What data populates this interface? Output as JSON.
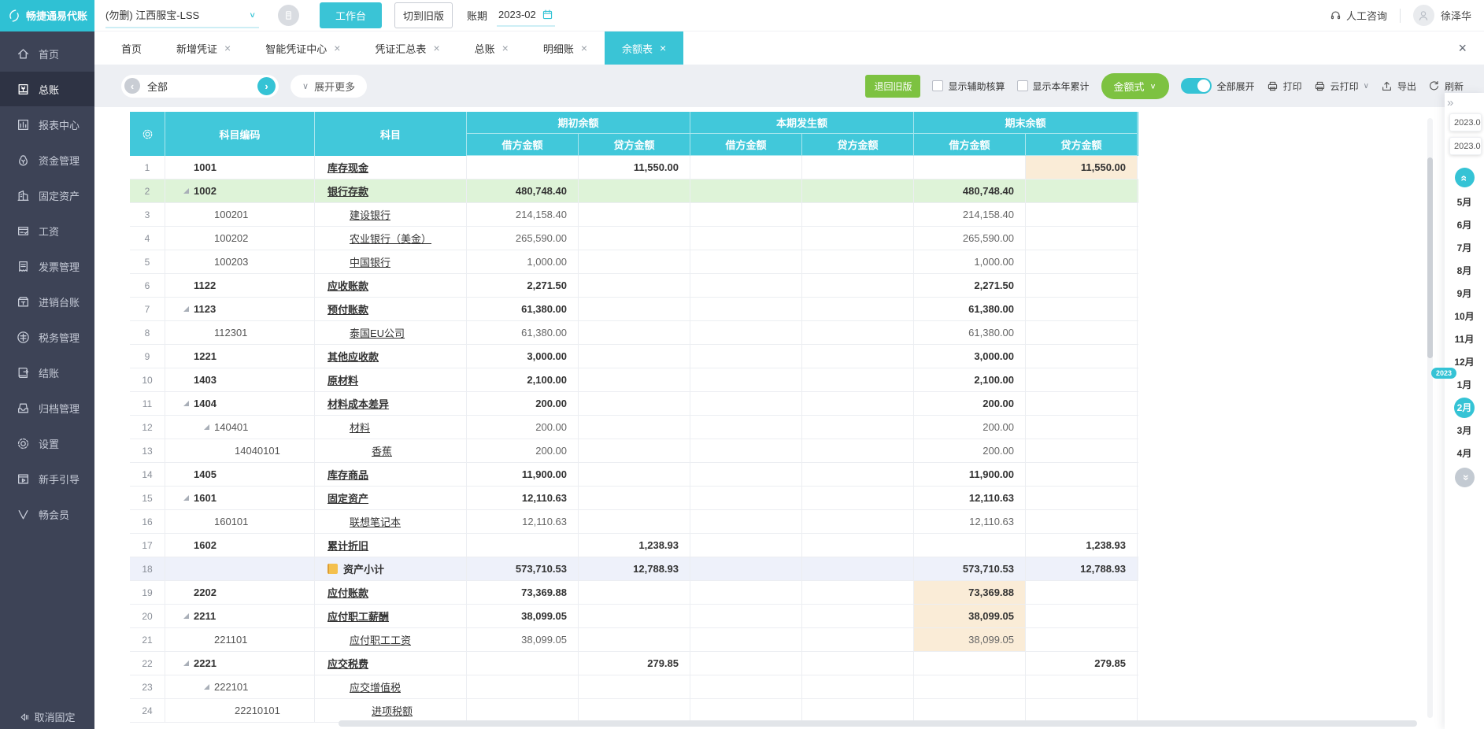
{
  "topbar": {
    "logo": "畅捷通易代账",
    "account": "(勿删) 江西服宝-LSS",
    "workbench": "工作台",
    "switch_old": "切到旧版",
    "period_label": "账期",
    "period_value": "2023-02",
    "support": "人工咨询",
    "username": "徐泽华"
  },
  "sidebar": {
    "items": [
      {
        "label": "首页",
        "icon": "home",
        "active": false
      },
      {
        "label": "总账",
        "icon": "ledger",
        "active": true
      },
      {
        "label": "报表中心",
        "icon": "report",
        "active": false
      },
      {
        "label": "资金管理",
        "icon": "money",
        "active": false
      },
      {
        "label": "固定资产",
        "icon": "asset",
        "active": false
      },
      {
        "label": "工资",
        "icon": "salary",
        "active": false
      },
      {
        "label": "发票管理",
        "icon": "invoice",
        "active": false
      },
      {
        "label": "进销台账",
        "icon": "purchase",
        "active": false
      },
      {
        "label": "税务管理",
        "icon": "tax",
        "active": false
      },
      {
        "label": "结账",
        "icon": "closing",
        "active": false
      },
      {
        "label": "归档管理",
        "icon": "archive",
        "active": false
      },
      {
        "label": "设置",
        "icon": "settings",
        "active": false
      },
      {
        "label": "新手引导",
        "icon": "guide",
        "active": false
      },
      {
        "label": "畅会员",
        "icon": "member",
        "active": false
      }
    ],
    "unpin": "取消固定"
  },
  "tabs": {
    "items": [
      {
        "label": "首页",
        "closable": false,
        "active": false
      },
      {
        "label": "新增凭证",
        "closable": true,
        "active": false
      },
      {
        "label": "智能凭证中心",
        "closable": true,
        "active": false
      },
      {
        "label": "凭证汇总表",
        "closable": true,
        "active": false
      },
      {
        "label": "总账",
        "closable": true,
        "active": false
      },
      {
        "label": "明细账",
        "closable": true,
        "active": false
      },
      {
        "label": "余额表",
        "closable": true,
        "active": true
      }
    ]
  },
  "toolbar": {
    "filter": "全部",
    "expand_more": "展开更多",
    "back_old": "退回旧版",
    "checkbox_aux": "显示辅助核算",
    "checkbox_ytd": "显示本年累计",
    "amount_style": "金额式",
    "expand_all": "全部展开",
    "print": "打印",
    "cloud_print": "云打印",
    "export": "导出",
    "refresh": "刷新"
  },
  "table": {
    "col_code": "科目编码",
    "col_subject": "科目",
    "grp_opening": "期初余额",
    "grp_current": "本期发生额",
    "grp_ending": "期末余额",
    "col_debit": "借方金额",
    "col_credit": "贷方金额",
    "rows": [
      {
        "seq": "1",
        "code": "1001",
        "tri": false,
        "level": 1,
        "subject": "库存现金",
        "bold": true,
        "bg": "",
        "subtotal": false,
        "hl": [
          5
        ],
        "amounts": [
          "",
          "11,550.00",
          "",
          "",
          "",
          "11,550.00"
        ]
      },
      {
        "seq": "2",
        "code": "1002",
        "tri": true,
        "level": 1,
        "subject": "银行存款",
        "bold": true,
        "bg": "green",
        "subtotal": false,
        "hl": [],
        "amounts": [
          "480,748.40",
          "",
          "",
          "",
          "480,748.40",
          ""
        ]
      },
      {
        "seq": "3",
        "code": "100201",
        "tri": false,
        "level": 2,
        "subject": "建设银行",
        "bold": false,
        "bg": "",
        "subtotal": false,
        "hl": [],
        "amounts": [
          "214,158.40",
          "",
          "",
          "",
          "214,158.40",
          ""
        ]
      },
      {
        "seq": "4",
        "code": "100202",
        "tri": false,
        "level": 2,
        "subject": "农业银行（美金）",
        "bold": false,
        "bg": "",
        "subtotal": false,
        "hl": [],
        "amounts": [
          "265,590.00",
          "",
          "",
          "",
          "265,590.00",
          ""
        ]
      },
      {
        "seq": "5",
        "code": "100203",
        "tri": false,
        "level": 2,
        "subject": "中国银行",
        "bold": false,
        "bg": "",
        "subtotal": false,
        "hl": [],
        "amounts": [
          "1,000.00",
          "",
          "",
          "",
          "1,000.00",
          ""
        ]
      },
      {
        "seq": "6",
        "code": "1122",
        "tri": false,
        "level": 1,
        "subject": "应收账款",
        "bold": true,
        "bg": "",
        "subtotal": false,
        "hl": [],
        "amounts": [
          "2,271.50",
          "",
          "",
          "",
          "2,271.50",
          ""
        ]
      },
      {
        "seq": "7",
        "code": "1123",
        "tri": true,
        "level": 1,
        "subject": "预付账款",
        "bold": true,
        "bg": "",
        "subtotal": false,
        "hl": [],
        "amounts": [
          "61,380.00",
          "",
          "",
          "",
          "61,380.00",
          ""
        ]
      },
      {
        "seq": "8",
        "code": "112301",
        "tri": false,
        "level": 2,
        "subject": "泰国EU公司",
        "bold": false,
        "bg": "",
        "subtotal": false,
        "hl": [],
        "amounts": [
          "61,380.00",
          "",
          "",
          "",
          "61,380.00",
          ""
        ]
      },
      {
        "seq": "9",
        "code": "1221",
        "tri": false,
        "level": 1,
        "subject": "其他应收款",
        "bold": true,
        "bg": "",
        "subtotal": false,
        "hl": [],
        "amounts": [
          "3,000.00",
          "",
          "",
          "",
          "3,000.00",
          ""
        ]
      },
      {
        "seq": "10",
        "code": "1403",
        "tri": false,
        "level": 1,
        "subject": "原材料",
        "bold": true,
        "bg": "",
        "subtotal": false,
        "hl": [],
        "amounts": [
          "2,100.00",
          "",
          "",
          "",
          "2,100.00",
          ""
        ]
      },
      {
        "seq": "11",
        "code": "1404",
        "tri": true,
        "level": 1,
        "subject": "材料成本差异",
        "bold": true,
        "bg": "",
        "subtotal": false,
        "hl": [],
        "amounts": [
          "200.00",
          "",
          "",
          "",
          "200.00",
          ""
        ]
      },
      {
        "seq": "12",
        "code": "140401",
        "tri": true,
        "level": 2,
        "subject": "材料",
        "bold": false,
        "bg": "",
        "subtotal": false,
        "hl": [],
        "amounts": [
          "200.00",
          "",
          "",
          "",
          "200.00",
          ""
        ]
      },
      {
        "seq": "13",
        "code": "14040101",
        "tri": false,
        "level": 3,
        "subject": "香蕉",
        "bold": false,
        "bg": "",
        "subtotal": false,
        "hl": [],
        "amounts": [
          "200.00",
          "",
          "",
          "",
          "200.00",
          ""
        ]
      },
      {
        "seq": "14",
        "code": "1405",
        "tri": false,
        "level": 1,
        "subject": "库存商品",
        "bold": true,
        "bg": "",
        "subtotal": false,
        "hl": [],
        "amounts": [
          "11,900.00",
          "",
          "",
          "",
          "11,900.00",
          ""
        ]
      },
      {
        "seq": "15",
        "code": "1601",
        "tri": true,
        "level": 1,
        "subject": "固定资产",
        "bold": true,
        "bg": "",
        "subtotal": false,
        "hl": [],
        "amounts": [
          "12,110.63",
          "",
          "",
          "",
          "12,110.63",
          ""
        ]
      },
      {
        "seq": "16",
        "code": "160101",
        "tri": false,
        "level": 2,
        "subject": "联想笔记本",
        "bold": false,
        "bg": "",
        "subtotal": false,
        "hl": [],
        "amounts": [
          "12,110.63",
          "",
          "",
          "",
          "12,110.63",
          ""
        ]
      },
      {
        "seq": "17",
        "code": "1602",
        "tri": false,
        "level": 1,
        "subject": "累计折旧",
        "bold": true,
        "bg": "",
        "subtotal": false,
        "hl": [],
        "amounts": [
          "",
          "1,238.93",
          "",
          "",
          "",
          "1,238.93"
        ]
      },
      {
        "seq": "18",
        "code": "",
        "tri": false,
        "level": 1,
        "subject": "资产小计",
        "bold": true,
        "bg": "lavender",
        "subtotal": true,
        "hl": [],
        "amounts": [
          "573,710.53",
          "12,788.93",
          "",
          "",
          "573,710.53",
          "12,788.93"
        ]
      },
      {
        "seq": "19",
        "code": "2202",
        "tri": false,
        "level": 1,
        "subject": "应付账款",
        "bold": true,
        "bg": "",
        "subtotal": false,
        "hl": [
          4
        ],
        "amounts": [
          "73,369.88",
          "",
          "",
          "",
          "73,369.88",
          ""
        ]
      },
      {
        "seq": "20",
        "code": "2211",
        "tri": true,
        "level": 1,
        "subject": "应付职工薪酬",
        "bold": true,
        "bg": "",
        "subtotal": false,
        "hl": [
          4
        ],
        "amounts": [
          "38,099.05",
          "",
          "",
          "",
          "38,099.05",
          ""
        ]
      },
      {
        "seq": "21",
        "code": "221101",
        "tri": false,
        "level": 2,
        "subject": "应付职工工资",
        "bold": false,
        "bg": "",
        "subtotal": false,
        "hl": [
          4
        ],
        "amounts": [
          "38,099.05",
          "",
          "",
          "",
          "38,099.05",
          ""
        ]
      },
      {
        "seq": "22",
        "code": "2221",
        "tri": true,
        "level": 1,
        "subject": "应交税费",
        "bold": true,
        "bg": "",
        "subtotal": false,
        "hl": [],
        "amounts": [
          "",
          "279.85",
          "",
          "",
          "",
          "279.85"
        ]
      },
      {
        "seq": "23",
        "code": "222101",
        "tri": true,
        "level": 2,
        "subject": "应交增值税",
        "bold": false,
        "bg": "",
        "subtotal": false,
        "hl": [],
        "amounts": [
          "",
          "",
          "",
          "",
          "",
          ""
        ]
      },
      {
        "seq": "24",
        "code": "22210101",
        "tri": false,
        "level": 3,
        "subject": "进项税额",
        "bold": false,
        "bg": "",
        "subtotal": false,
        "hl": [],
        "amounts": [
          "",
          "",
          "",
          "",
          "",
          ""
        ]
      }
    ]
  },
  "right_panel": {
    "expand_icon": "»",
    "period_cards": [
      "2023.0",
      "2023.0"
    ],
    "year_badge": "2023",
    "badge_month": "1月",
    "active_month": "2月",
    "months": [
      "5月",
      "6月",
      "7月",
      "8月",
      "9月",
      "10月",
      "11月",
      "12月",
      "1月",
      "2月",
      "3月",
      "4月"
    ]
  },
  "colors": {
    "accent": "#35c3d5",
    "table_header": "#41c8da",
    "green_button": "#7dc241",
    "row_green": "#def3d8",
    "row_lavender": "#eef1fa",
    "cell_orange": "#faecd7",
    "sidebar_bg": "#3d4356"
  }
}
